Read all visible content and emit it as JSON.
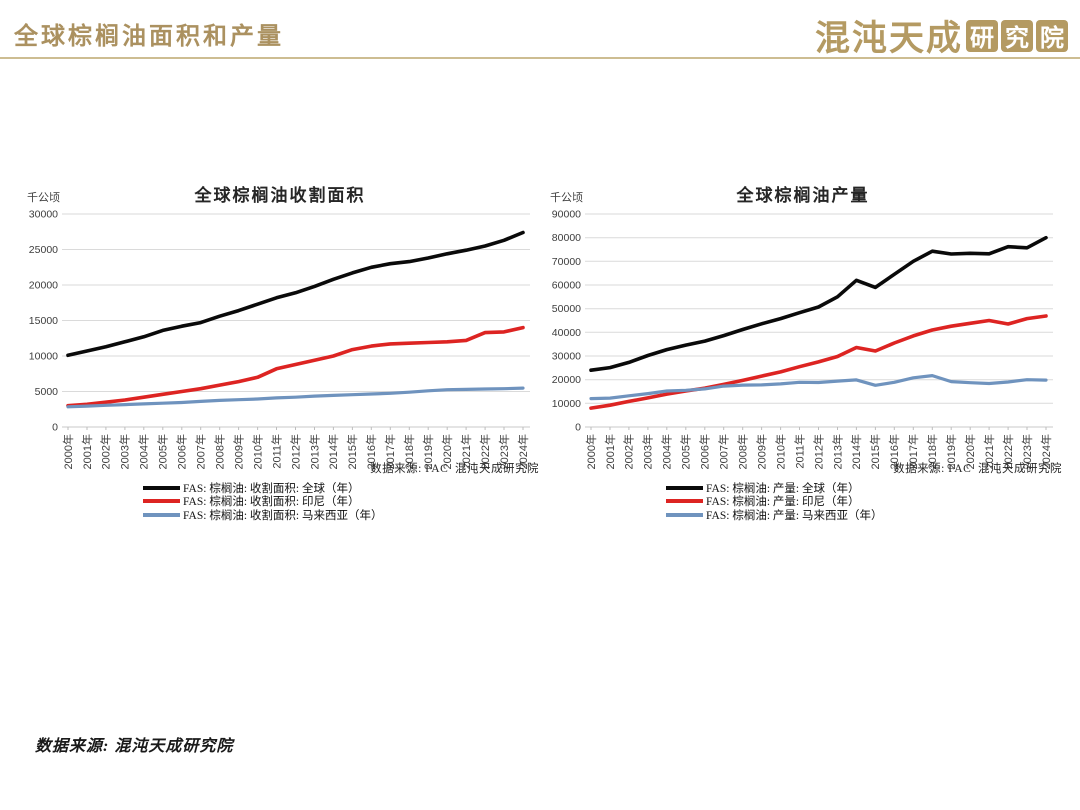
{
  "header": {
    "title": "全球棕榈油面积和产量",
    "logo_script": "混沌天成",
    "logo_seal_chars": [
      "研",
      "究",
      "院"
    ],
    "accent_color": "#ab9160",
    "rule_color": "#cdbd92"
  },
  "footer": {
    "source": "数据来源: 混沌天成研究院"
  },
  "chart_data": [
    {
      "type": "line",
      "title": "全球棕榈油收割面积",
      "unit_label": "千公顷",
      "source_note": "数据来源: FAC  混沌天成研究院",
      "ylim": [
        0,
        30000
      ],
      "ytick_step": 5000,
      "grid": true,
      "legend_position": "bottom",
      "x_labels": [
        "2000年",
        "2001年",
        "2002年",
        "2003年",
        "2004年",
        "2005年",
        "2006年",
        "2007年",
        "2008年",
        "2009年",
        "2010年",
        "2011年",
        "2012年",
        "2013年",
        "2014年",
        "2015年",
        "2016年",
        "2017年",
        "2018年",
        "2019年",
        "2020年",
        "2021年",
        "2022年",
        "2023年",
        "2024年"
      ],
      "series": [
        {
          "name": "FAS: 棕榈油: 收割面积: 全球（年）",
          "color": "#0a0a0a",
          "values": [
            10100,
            10700,
            11300,
            12000,
            12700,
            13600,
            14200,
            14700,
            15600,
            16400,
            17300,
            18200,
            18900,
            19800,
            20800,
            21700,
            22500,
            23000,
            23300,
            23800,
            24400,
            24900,
            25500,
            26300,
            27400
          ]
        },
        {
          "name": "FAS: 棕榈油: 收割面积: 印尼（年）",
          "color": "#dd2422",
          "values": [
            3000,
            3200,
            3500,
            3800,
            4200,
            4600,
            5000,
            5400,
            5900,
            6400,
            7000,
            8200,
            8800,
            9400,
            10000,
            10900,
            11400,
            11700,
            11800,
            11900,
            12000,
            12200,
            13300,
            13400,
            14000
          ]
        },
        {
          "name": "FAS: 棕榈油: 收割面积: 马来西亚（年）",
          "color": "#6f93be",
          "values": [
            2850,
            2950,
            3050,
            3150,
            3250,
            3350,
            3450,
            3600,
            3750,
            3850,
            3950,
            4100,
            4200,
            4350,
            4450,
            4550,
            4650,
            4750,
            4900,
            5100,
            5250,
            5300,
            5350,
            5400,
            5480
          ]
        }
      ]
    },
    {
      "type": "line",
      "title": "全球棕榈油产量",
      "unit_label": "千公顷",
      "source_note": "数据来源: FAC  混沌天成研究院",
      "ylim": [
        0,
        90000
      ],
      "ytick_step": 10000,
      "grid": true,
      "legend_position": "bottom",
      "x_labels": [
        "2000年",
        "2001年",
        "2002年",
        "2003年",
        "2004年",
        "2005年",
        "2006年",
        "2007年",
        "2008年",
        "2009年",
        "2010年",
        "2011年",
        "2012年",
        "2013年",
        "2014年",
        "2015年",
        "2016年",
        "2017年",
        "2018年",
        "2019年",
        "2020年",
        "2021年",
        "2022年",
        "2023年",
        "2024年"
      ],
      "series": [
        {
          "name": "FAS: 棕榈油: 产量: 全球（年）",
          "color": "#0a0a0a",
          "values": [
            24000,
            25100,
            27300,
            30200,
            32700,
            34600,
            36300,
            38600,
            41200,
            43600,
            45800,
            48300,
            50700,
            55000,
            62000,
            59000,
            64500,
            70000,
            74300,
            73100,
            73400,
            73200,
            76200,
            75700,
            80000
          ]
        },
        {
          "name": "FAS: 棕榈油: 产量: 印尼（年）",
          "color": "#dd2422",
          "values": [
            8000,
            9200,
            10800,
            12300,
            13900,
            15200,
            16400,
            18000,
            19700,
            21500,
            23300,
            25500,
            27500,
            29800,
            33600,
            32100,
            35500,
            38500,
            41000,
            42600,
            43800,
            45000,
            43500,
            45800,
            46900
          ]
        },
        {
          "name": "FAS: 棕榈油: 产量: 马来西亚（年）",
          "color": "#6f93be",
          "values": [
            12000,
            12200,
            13200,
            14100,
            15200,
            15500,
            16100,
            17300,
            17700,
            17800,
            18200,
            18900,
            18800,
            19400,
            19900,
            17600,
            18900,
            20800,
            21700,
            19200,
            18700,
            18400,
            19000,
            20000,
            19800
          ]
        }
      ]
    }
  ]
}
